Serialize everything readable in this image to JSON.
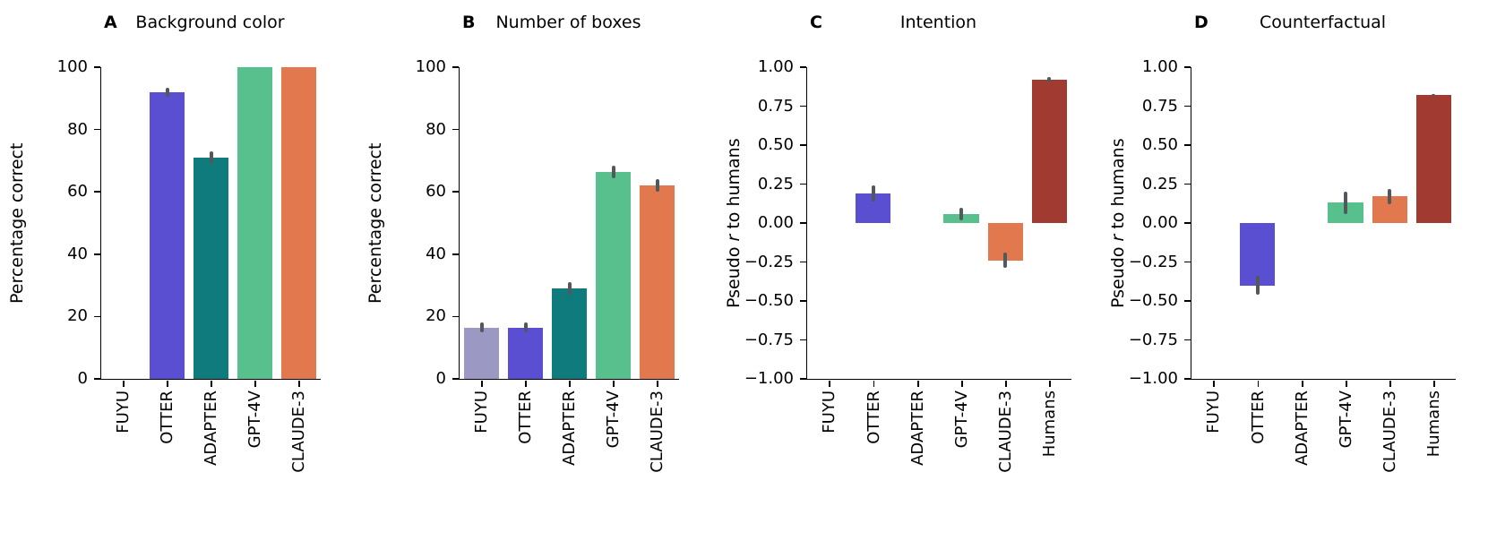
{
  "figure": {
    "background": "#ffffff",
    "axis_color": "#000000",
    "error_bar_color": "#53585c",
    "panel_count": 4
  },
  "chart_data": [
    {
      "type": "bar",
      "panel_letter": "A",
      "title": "Background color",
      "ylabel": "Percentage correct",
      "ylabel_parts": [
        {
          "text": "Percentage correct",
          "italic": false
        }
      ],
      "categories": [
        "FUYU",
        "OTTER",
        "ADAPTER",
        "GPT-4V",
        "CLAUDE-3"
      ],
      "values": [
        0,
        92,
        71,
        100,
        100
      ],
      "errors": [
        0,
        1.5,
        2,
        0,
        0
      ],
      "colors": [
        "#9b99c4",
        "#5b4fd1",
        "#0f7b7c",
        "#57c08c",
        "#e2794e"
      ],
      "ylim": [
        0,
        100
      ],
      "ytick_values": [
        0,
        20,
        40,
        60,
        80,
        100
      ],
      "ytick_labels": [
        "0",
        "20",
        "40",
        "60",
        "80",
        "100"
      ],
      "grid": false,
      "legend": null
    },
    {
      "type": "bar",
      "panel_letter": "B",
      "title": "Number of boxes",
      "ylabel": "Percentage correct",
      "ylabel_parts": [
        {
          "text": "Percentage correct",
          "italic": false
        }
      ],
      "categories": [
        "FUYU",
        "OTTER",
        "ADAPTER",
        "GPT-4V",
        "CLAUDE-3"
      ],
      "values": [
        16.5,
        16.5,
        29,
        66.5,
        62
      ],
      "errors": [
        1.5,
        1.5,
        2,
        2,
        2
      ],
      "colors": [
        "#9b99c4",
        "#5b4fd1",
        "#0f7b7c",
        "#57c08c",
        "#e2794e"
      ],
      "ylim": [
        0,
        100
      ],
      "ytick_values": [
        0,
        20,
        40,
        60,
        80,
        100
      ],
      "ytick_labels": [
        "0",
        "20",
        "40",
        "60",
        "80",
        "100"
      ],
      "grid": false,
      "legend": null
    },
    {
      "type": "bar",
      "panel_letter": "C",
      "title": "Intention",
      "ylabel": "Pseudo r to humans",
      "ylabel_parts": [
        {
          "text": "Pseudo ",
          "italic": false
        },
        {
          "text": "r",
          "italic": true
        },
        {
          "text": " to humans",
          "italic": false
        }
      ],
      "categories": [
        "FUYU",
        "OTTER",
        "ADAPTER",
        "GPT-4V",
        "CLAUDE-3",
        "Humans"
      ],
      "values": [
        0,
        0.19,
        0,
        0.06,
        -0.24,
        0.92
      ],
      "errors": [
        0,
        0.05,
        0,
        0.04,
        0.05,
        0.015
      ],
      "colors": [
        "#9b99c4",
        "#5b4fd1",
        "#0f7b7c",
        "#57c08c",
        "#e2794e",
        "#a13b32"
      ],
      "ylim": [
        -1,
        1
      ],
      "ytick_values": [
        -1,
        -0.75,
        -0.5,
        -0.25,
        0,
        0.25,
        0.5,
        0.75,
        1
      ],
      "ytick_labels": [
        "−1.00",
        "−0.75",
        "−0.50",
        "−0.25",
        "0.00",
        "0.25",
        "0.50",
        "0.75",
        "1.00"
      ],
      "grid": false,
      "legend": null
    },
    {
      "type": "bar",
      "panel_letter": "D",
      "title": "Counterfactual",
      "ylabel": "Pseudo r to humans",
      "ylabel_parts": [
        {
          "text": "Pseudo ",
          "italic": false
        },
        {
          "text": "r",
          "italic": true
        },
        {
          "text": " to humans",
          "italic": false
        }
      ],
      "categories": [
        "FUYU",
        "OTTER",
        "ADAPTER",
        "GPT-4V",
        "CLAUDE-3",
        "Humans"
      ],
      "values": [
        0,
        -0.4,
        0,
        0.13,
        0.17,
        0.82
      ],
      "errors": [
        0,
        0.06,
        0,
        0.07,
        0.05,
        0.01
      ],
      "colors": [
        "#9b99c4",
        "#5b4fd1",
        "#0f7b7c",
        "#57c08c",
        "#e2794e",
        "#a13b32"
      ],
      "ylim": [
        -1,
        1
      ],
      "ytick_values": [
        -1,
        -0.75,
        -0.5,
        -0.25,
        0,
        0.25,
        0.5,
        0.75,
        1
      ],
      "ytick_labels": [
        "−1.00",
        "−0.75",
        "−0.50",
        "−0.25",
        "0.00",
        "0.25",
        "0.50",
        "0.75",
        "1.00"
      ],
      "grid": false,
      "legend": null
    }
  ]
}
